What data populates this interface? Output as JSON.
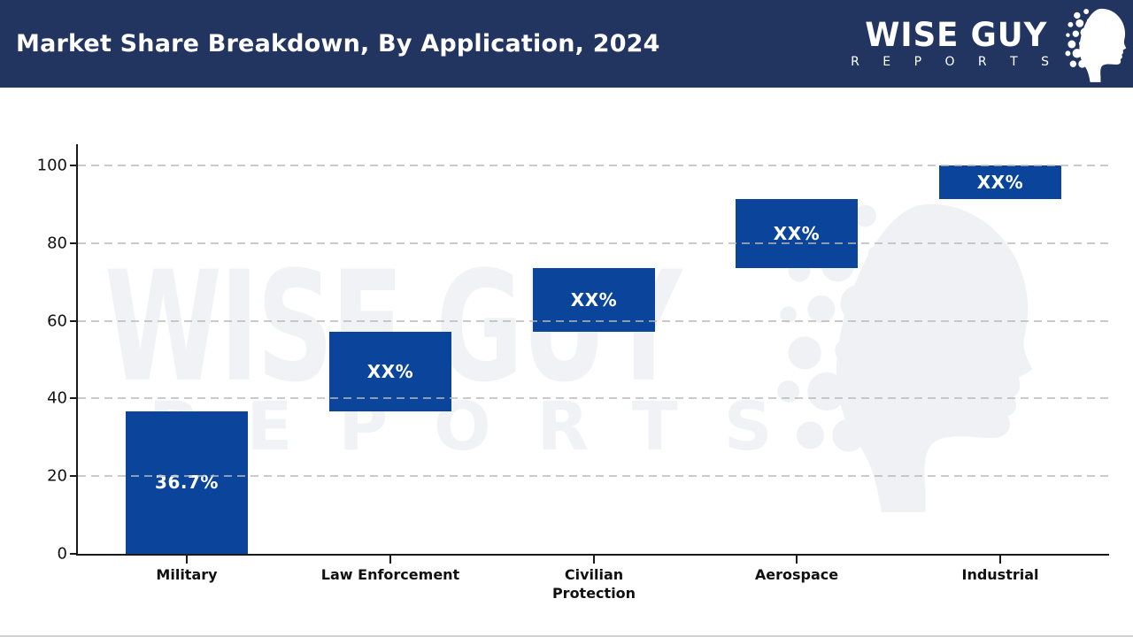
{
  "header": {
    "title": "Market Share Breakdown, By Application, 2024",
    "bg_color": "#223560",
    "brand": {
      "line1": "WISE GUY",
      "line2": "R E P O R T S"
    }
  },
  "watermark": {
    "line1": "WISE GUY",
    "line2": "REPORTS"
  },
  "chart_data": {
    "type": "bar",
    "variant": "waterfall-segments",
    "title": "Market Share Breakdown, By Application, 2024",
    "categories": [
      "Military",
      "Law Enforcement",
      "Civilian\nProtection",
      "Aerospace",
      "Industrial"
    ],
    "segments": [
      {
        "category": "Military",
        "start": 0,
        "end": 36.7,
        "label": "36.7%"
      },
      {
        "category": "Law Enforcement",
        "start": 36.7,
        "end": 57.2,
        "label": "XX%"
      },
      {
        "category": "Civilian Protection",
        "start": 57.2,
        "end": 73.5,
        "label": "XX%"
      },
      {
        "category": "Aerospace",
        "start": 73.5,
        "end": 91.3,
        "label": "XX%"
      },
      {
        "category": "Industrial",
        "start": 91.3,
        "end": 100,
        "label": "XX%"
      }
    ],
    "yticks": [
      0,
      20,
      40,
      60,
      80,
      100
    ],
    "ylim": [
      0,
      105.5
    ],
    "xlabel": "",
    "ylabel": "",
    "grid": "dashed horizontal, drawn over bars",
    "legend": false,
    "bar_color": "#0a459b",
    "bar_label_color": "#ffffff",
    "axis_color": "#1a1a1a",
    "grid_color": "#c8c8c8"
  }
}
